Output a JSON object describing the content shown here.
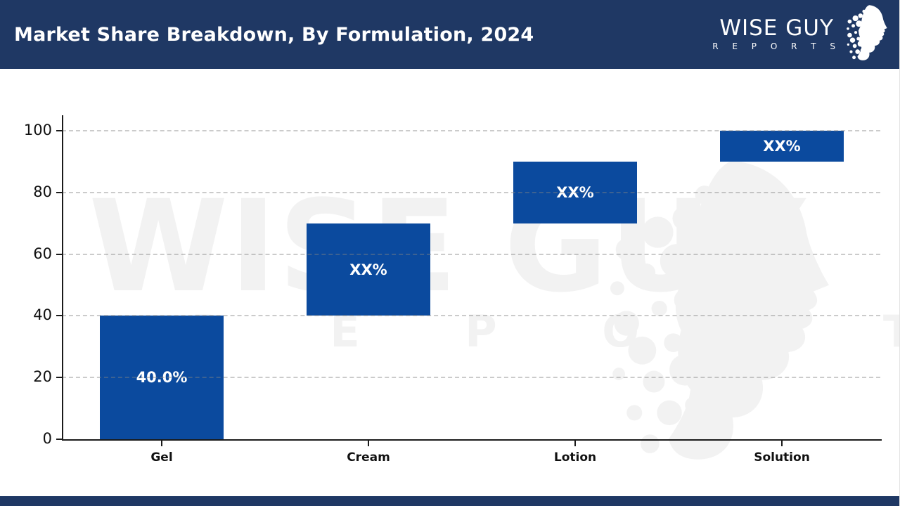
{
  "header": {
    "title": "Market Share Breakdown, By Formulation, 2024",
    "logo": {
      "line1": "WISE GUY",
      "line2": "R E P O R T S"
    }
  },
  "watermark": {
    "line1": "WISE GUY",
    "line2": "R E P O R T S"
  },
  "chart_data": {
    "type": "bar",
    "subtype": "waterfall",
    "title": "Market Share Breakdown, By Formulation, 2024",
    "categories": [
      "Gel",
      "Cream",
      "Lotion",
      "Solution"
    ],
    "series": [
      {
        "name": "Market Share (%)",
        "base": [
          0,
          40,
          70,
          90
        ],
        "values": [
          40,
          30,
          20,
          10
        ]
      }
    ],
    "bar_labels": [
      "40.0%",
      "XX%",
      "XX%",
      "XX%"
    ],
    "ylim": [
      0,
      100
    ],
    "yticks": [
      0,
      20,
      40,
      60,
      80,
      100
    ],
    "grid": "horizontal-dashed",
    "legend": "none",
    "xlabel": "",
    "ylabel": ""
  },
  "colors": {
    "header_bg": "#1f3864",
    "footer_bg": "#1f3864",
    "bar": "#0b4a9e",
    "bar_label_text": "#ffffff",
    "grid": "#cccccc",
    "axis": "#1a1a1a",
    "watermark": "#f2f2f2"
  }
}
